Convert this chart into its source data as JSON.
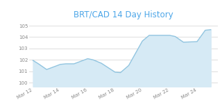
{
  "title": "BRT/CAD 14 Day History",
  "title_color": "#4da6e8",
  "title_fontsize": 8.5,
  "background_color": "#ffffff",
  "plot_bg_color": "#ffffff",
  "line_color": "#92c5e0",
  "fill_color": "#d6eaf5",
  "grid_color": "#d8d8d8",
  "x_days": [
    0,
    0.4,
    1.0,
    2.0,
    2.4,
    3.0,
    4.0,
    4.4,
    5.0,
    6.0,
    6.4,
    7.0,
    8.0,
    8.5,
    9.0,
    10.0,
    10.4,
    11.0,
    12.0,
    12.6,
    13.0
  ],
  "values": [
    101.95,
    101.65,
    101.15,
    101.6,
    101.65,
    101.65,
    102.1,
    102.0,
    101.7,
    100.92,
    100.88,
    101.5,
    103.65,
    104.15,
    104.15,
    104.15,
    104.05,
    103.55,
    103.6,
    104.6,
    104.65
  ],
  "xtick_positions": [
    0,
    2,
    4,
    6,
    8,
    10,
    12
  ],
  "xtick_labels": [
    "Mar 12",
    "Mar 14",
    "Mar 16",
    "Mar 18",
    "Mar 20",
    "Mar 22",
    "Mar 24"
  ],
  "ytick_positions": [
    100,
    101,
    102,
    103,
    104,
    105
  ],
  "ytick_labels": [
    "100",
    "101",
    "102",
    "103",
    "104",
    "105"
  ],
  "ylim": [
    99.65,
    105.5
  ],
  "xlim": [
    -0.3,
    13.5
  ],
  "fill_baseline": 99.65
}
